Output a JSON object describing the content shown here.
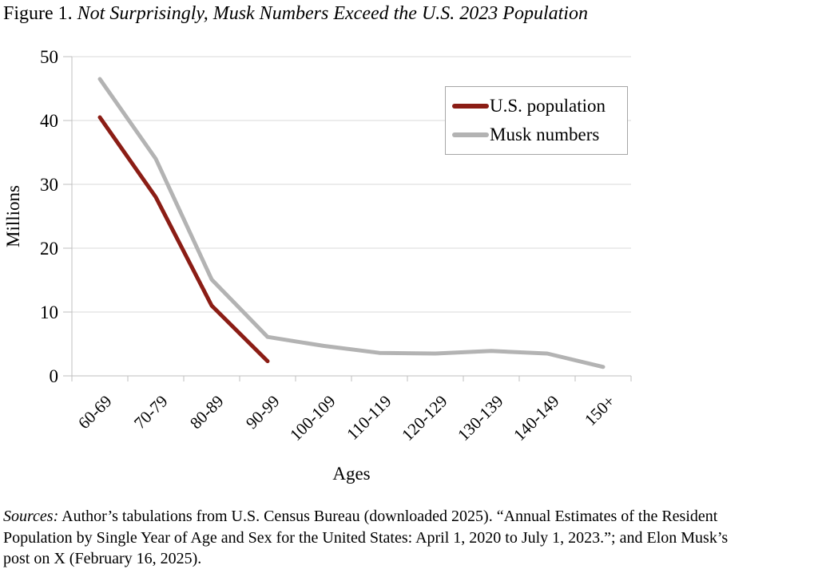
{
  "title": {
    "prefix": "Figure 1. ",
    "text": "Not Surprisingly, Musk Numbers Exceed the U.S. 2023 Population"
  },
  "chart_data": {
    "type": "line",
    "categories": [
      "60-69",
      "70-79",
      "80-89",
      "90-99",
      "100-109",
      "110-119",
      "120-129",
      "130-139",
      "140-149",
      "150+"
    ],
    "series": [
      {
        "name": "U.S. population",
        "color": "#8b1d15",
        "values": [
          40.5,
          28.0,
          11.0,
          2.3,
          null,
          null,
          null,
          null,
          null,
          null
        ]
      },
      {
        "name": "Musk numbers",
        "color": "#b3b3b3",
        "values": [
          46.5,
          34.0,
          15.1,
          6.1,
          4.7,
          3.6,
          3.5,
          3.9,
          3.5,
          1.4
        ]
      }
    ],
    "xlabel": "Ages",
    "ylabel": "Millions",
    "ylim": [
      0,
      50
    ],
    "yticks": [
      0,
      10,
      20,
      30,
      40,
      50
    ],
    "grid": "horizontal",
    "legend_position": "top-right",
    "gridline_color": "#d9d9d9",
    "axis_color": "#bfbfbf"
  },
  "footer": {
    "prefix": "Sources:",
    "lines": [
      " Author’s tabulations from U.S. Census Bureau (downloaded 2025). “Annual Estimates of the Resident",
      "Population by Single Year of Age and Sex for the United States: April 1, 2020 to July 1, 2023.”; and Elon Musk’s",
      "post on X (February 16, 2025)."
    ]
  }
}
